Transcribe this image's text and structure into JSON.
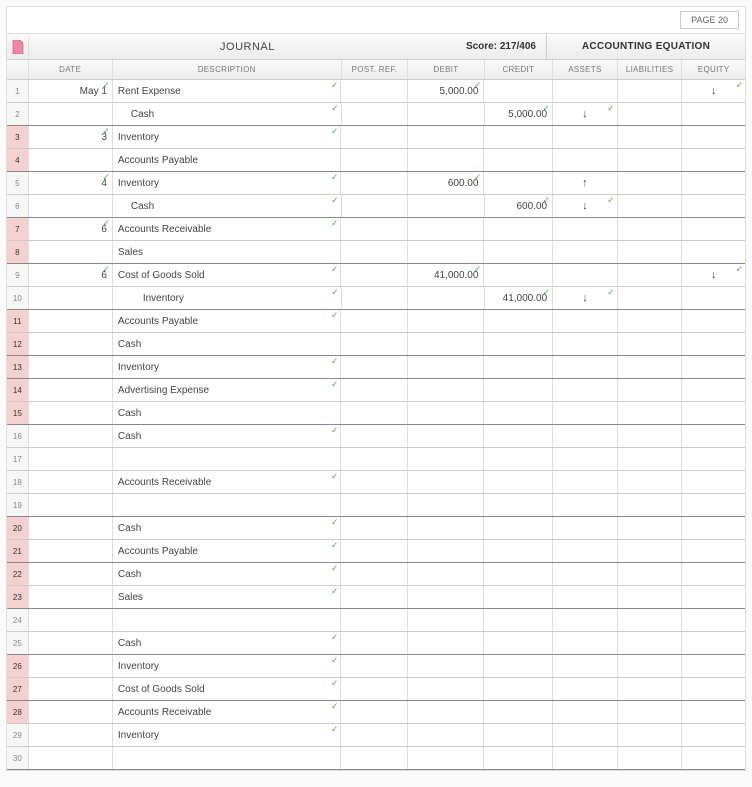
{
  "page_label": "PAGE 20",
  "journal_title": "JOURNAL",
  "score_label": "Score: 217/406",
  "accounting_title": "ACCOUNTING EQUATION",
  "columns": {
    "date": "DATE",
    "description": "DESCRIPTION",
    "postref": "POST. REF.",
    "debit": "DEBIT",
    "credit": "CREDIT",
    "assets": "ASSETS",
    "liabilities": "LIABILITIES",
    "equity": "EQUITY"
  },
  "arrows": {
    "up": "↑",
    "down": "↓"
  },
  "rows": [
    {
      "num": "1",
      "hl": false,
      "date": "May 1",
      "date_check": true,
      "desc": "Rent Expense",
      "indent": 0,
      "desc_check": true,
      "debit": "5,000.00",
      "debit_check": true,
      "equity": "↓",
      "equity_check": true,
      "sep": "light"
    },
    {
      "num": "2",
      "hl": false,
      "desc": "Cash",
      "indent": 1,
      "desc_check": true,
      "credit": "5,000.00",
      "credit_check": true,
      "asset": "↓",
      "asset_check": true,
      "sep": "heavy"
    },
    {
      "num": "3",
      "hl": true,
      "date": "3",
      "date_check": true,
      "desc": "Inventory",
      "indent": 0,
      "desc_check": true,
      "sep": "light"
    },
    {
      "num": "4",
      "hl": true,
      "desc": "Accounts Payable",
      "indent": 0,
      "desc_check": false,
      "sep": "heavy"
    },
    {
      "num": "5",
      "hl": false,
      "date": "4",
      "date_check": true,
      "desc": "Inventory",
      "indent": 0,
      "desc_check": true,
      "debit": "600.00",
      "debit_check": true,
      "asset": "↑",
      "asset_check": false,
      "sep": "light"
    },
    {
      "num": "6",
      "hl": false,
      "desc": "Cash",
      "indent": 1,
      "desc_check": true,
      "credit": "600.00",
      "credit_check": true,
      "asset": "↓",
      "asset_check": true,
      "sep": "heavy"
    },
    {
      "num": "7",
      "hl": true,
      "date": "6",
      "date_check": true,
      "desc": "Accounts Receivable",
      "indent": 0,
      "desc_check": true,
      "sep": "light"
    },
    {
      "num": "8",
      "hl": true,
      "desc": "Sales",
      "indent": 0,
      "sep": "heavy"
    },
    {
      "num": "9",
      "hl": false,
      "date": "6",
      "date_check": true,
      "desc": "Cost of Goods Sold",
      "indent": 0,
      "desc_check": true,
      "debit": "41,000.00",
      "debit_check": true,
      "equity": "↓",
      "equity_check": true,
      "sep": "light"
    },
    {
      "num": "10",
      "hl": false,
      "desc": "Inventory",
      "indent": 2,
      "desc_check": true,
      "credit": "41,000.00",
      "credit_check": true,
      "asset": "↓",
      "asset_check": true,
      "sep": "heavy"
    },
    {
      "num": "11",
      "hl": true,
      "desc": "Accounts Payable",
      "indent": 0,
      "desc_check": true,
      "sep": "light"
    },
    {
      "num": "12",
      "hl": true,
      "desc": "Cash",
      "indent": 0,
      "sep": "heavy"
    },
    {
      "num": "13",
      "hl": true,
      "desc": "Inventory",
      "indent": 0,
      "desc_check": true,
      "sep": "heavy"
    },
    {
      "num": "14",
      "hl": true,
      "desc": "Advertising Expense",
      "indent": 0,
      "desc_check": true,
      "sep": "light"
    },
    {
      "num": "15",
      "hl": true,
      "desc": "Cash",
      "indent": 0,
      "sep": "heavy"
    },
    {
      "num": "16",
      "hl": false,
      "desc": "Cash",
      "indent": 0,
      "desc_check": true,
      "sep": "light"
    },
    {
      "num": "17",
      "hl": false,
      "sep": "light"
    },
    {
      "num": "18",
      "hl": false,
      "desc": "Accounts Receivable",
      "indent": 0,
      "desc_check": true,
      "sep": "light"
    },
    {
      "num": "19",
      "hl": false,
      "sep": "heavy"
    },
    {
      "num": "20",
      "hl": true,
      "desc": "Cash",
      "indent": 0,
      "desc_check": true,
      "sep": "light"
    },
    {
      "num": "21",
      "hl": true,
      "desc": "Accounts Payable",
      "indent": 0,
      "desc_check": true,
      "sep": "heavy"
    },
    {
      "num": "22",
      "hl": true,
      "desc": "Cash",
      "indent": 0,
      "desc_check": true,
      "sep": "light"
    },
    {
      "num": "23",
      "hl": true,
      "desc": "Sales",
      "indent": 0,
      "desc_check": true,
      "sep": "heavy"
    },
    {
      "num": "24",
      "hl": false,
      "sep": "light"
    },
    {
      "num": "25",
      "hl": false,
      "desc": "Cash",
      "indent": 0,
      "desc_check": true,
      "sep": "heavy"
    },
    {
      "num": "26",
      "hl": true,
      "desc": "Inventory",
      "indent": 0,
      "desc_check": true,
      "sep": "light"
    },
    {
      "num": "27",
      "hl": true,
      "desc": "Cost of Goods Sold",
      "indent": 0,
      "desc_check": true,
      "sep": "heavy"
    },
    {
      "num": "28",
      "hl": true,
      "desc": "Accounts Receivable",
      "indent": 0,
      "desc_check": true,
      "sep": "light"
    },
    {
      "num": "29",
      "hl": false,
      "desc": "Inventory",
      "indent": 0,
      "desc_check": true,
      "sep": "light"
    },
    {
      "num": "30",
      "hl": false,
      "sep": "heavy"
    }
  ]
}
